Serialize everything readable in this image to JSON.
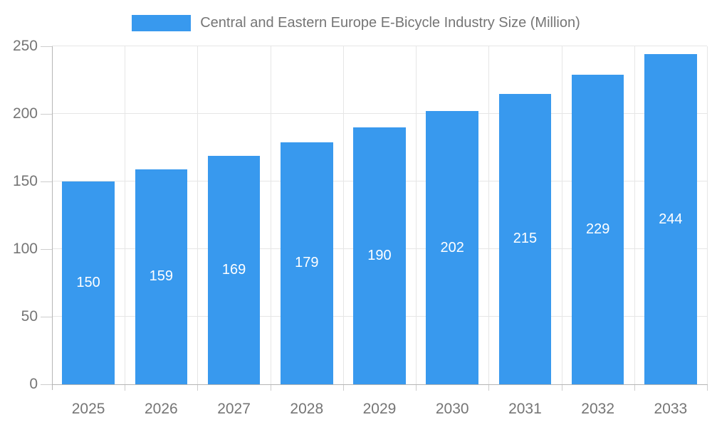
{
  "chart_data": {
    "type": "bar",
    "title": "Central and Eastern Europe E-Bicycle Industry Size (Million)",
    "categories": [
      "2025",
      "2026",
      "2027",
      "2028",
      "2029",
      "2030",
      "2031",
      "2032",
      "2033"
    ],
    "values": [
      150,
      159,
      169,
      179,
      190,
      202,
      215,
      229,
      244
    ],
    "xlabel": "",
    "ylabel": "",
    "ylim": [
      0,
      250
    ],
    "y_ticks": [
      0,
      50,
      100,
      150,
      200,
      250
    ],
    "grid": true,
    "legend_position": "top",
    "colors": {
      "bar": "#3899EE",
      "value_label": "#FFFFFF",
      "tick_label": "#757575",
      "axis_line": "#B5B5B5",
      "grid_line": "#E6E6E6",
      "tick_mark": "#CDCDCD"
    }
  }
}
